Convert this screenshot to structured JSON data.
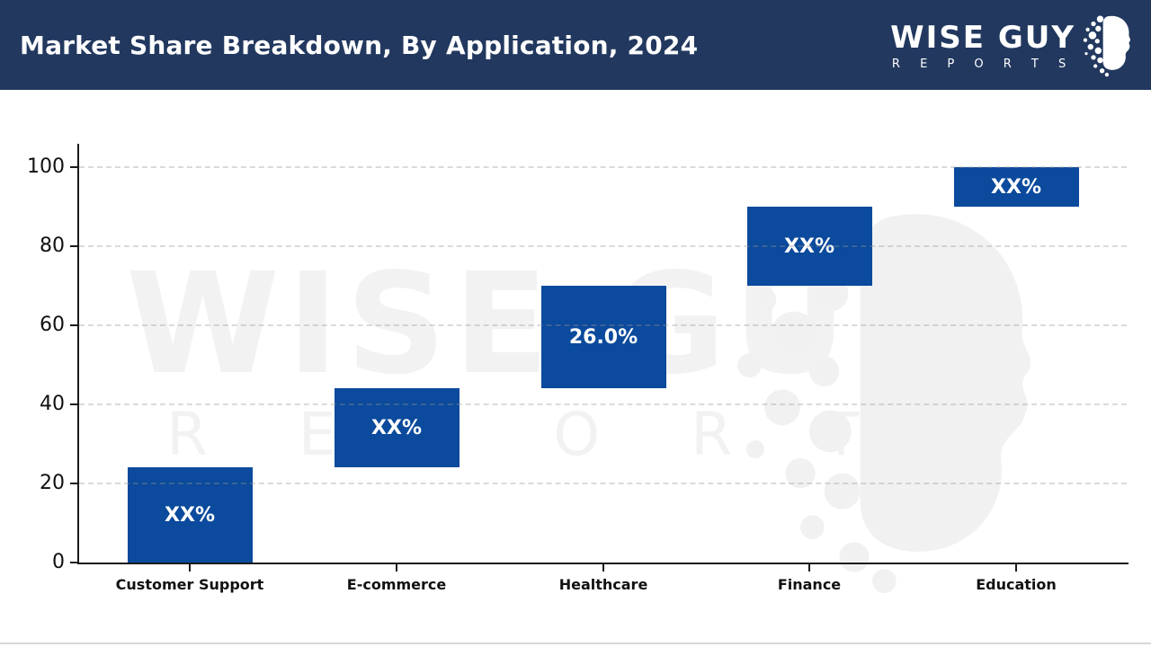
{
  "header": {
    "title": "Market Share Breakdown, By Application, 2024",
    "logo": {
      "line1": "WISE GUY",
      "line2": "R E P O R T S",
      "icon": "face-profile-dots-icon"
    }
  },
  "watermark": {
    "line1": "WISE GUY",
    "line2": "R E P O R T S"
  },
  "colors": {
    "header_bg": "#22385f",
    "bar_fill": "#0b4a9c",
    "bar_label_text": "#ffffff",
    "axis": "#1a1a1a",
    "gridline": "#d9d9d9",
    "watermark": "#f2f2f2"
  },
  "chart_data": {
    "type": "bar",
    "subtype": "floating-waterfall",
    "title": "Market Share Breakdown, By Application, 2024",
    "categories": [
      "Customer Support",
      "E-commerce",
      "Healthcare",
      "Finance",
      "Education"
    ],
    "series": [
      {
        "name": "Market Share (%)",
        "starts": [
          0,
          24,
          44,
          70,
          90
        ],
        "values": [
          24,
          20,
          26,
          20,
          10
        ],
        "ends": [
          24,
          44,
          70,
          90,
          100
        ]
      }
    ],
    "bar_labels": [
      "XX%",
      "XX%",
      "26.0%",
      "XX%",
      "XX%"
    ],
    "xlabel": "",
    "ylabel": "",
    "ylim": [
      0,
      100
    ],
    "yticks": [
      0,
      20,
      40,
      60,
      80,
      100
    ],
    "grid": "horizontal dashed, drawn over bars",
    "legend": "none"
  }
}
